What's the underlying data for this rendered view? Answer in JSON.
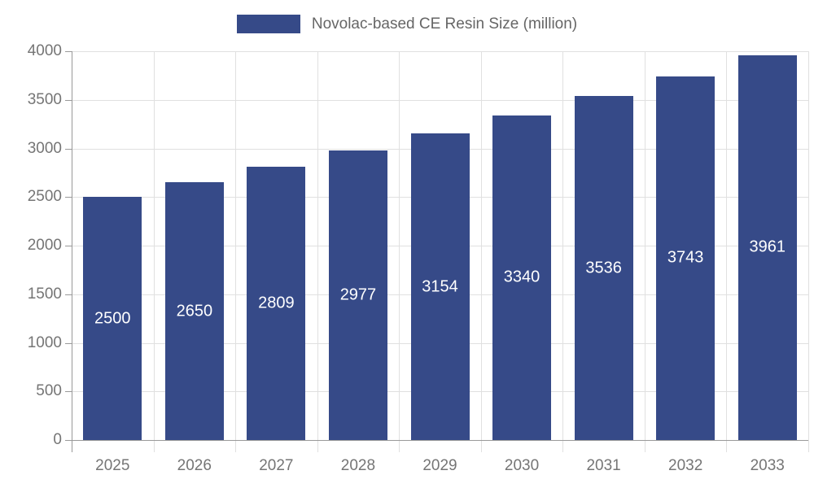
{
  "legend": {
    "items": [
      {
        "label": "Novolac-based CE Resin Size (million)",
        "color": "#364a88"
      }
    ]
  },
  "chart_data": {
    "type": "bar",
    "title": "",
    "categories": [
      "2025",
      "2026",
      "2027",
      "2028",
      "2029",
      "2030",
      "2031",
      "2032",
      "2033"
    ],
    "series": [
      {
        "name": "Novolac-based CE Resin Size (million)",
        "color": "#364a88",
        "values": [
          2500,
          2650,
          2809,
          2977,
          3154,
          3340,
          3536,
          3743,
          3961
        ]
      }
    ],
    "xlabel": "",
    "ylabel": "",
    "ylim": [
      0,
      4000
    ],
    "yticks": [
      0,
      500,
      1000,
      1500,
      2000,
      2500,
      3000,
      3500,
      4000
    ],
    "grid": true,
    "legend_position": "top",
    "value_labels": "inside-center",
    "value_label_color": "#ffffff"
  },
  "colors": {
    "bar": "#364a88",
    "axis_line": "#999999",
    "gridline": "#e0e0e0",
    "axis_text": "#757575",
    "legend_text": "#666666",
    "background": "#ffffff"
  }
}
